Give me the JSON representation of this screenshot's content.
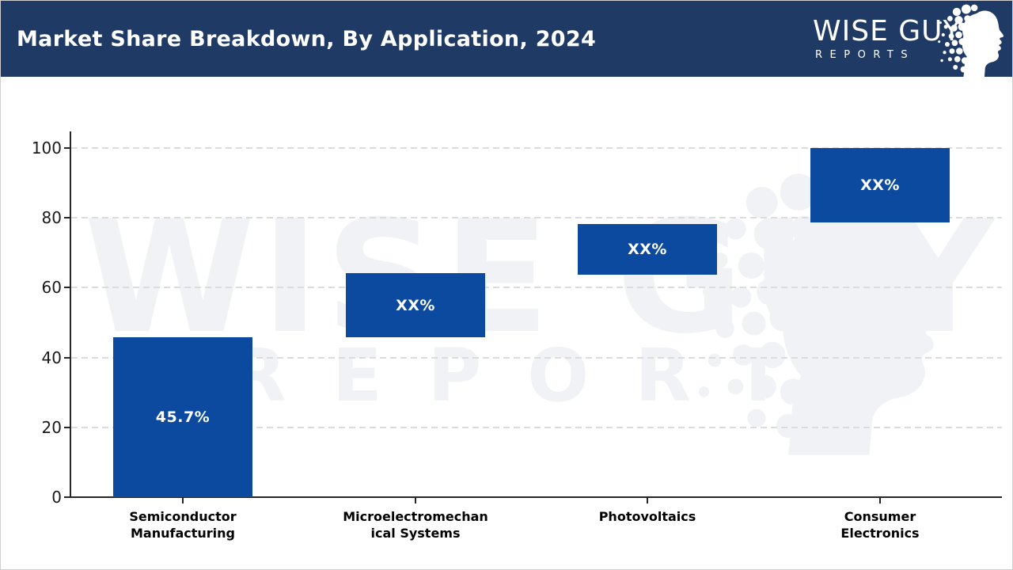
{
  "header": {
    "title": "Market Share Breakdown, By Application, 2024",
    "logo": {
      "line1": "WISE GUY",
      "line2": "REPORTS"
    }
  },
  "watermark": {
    "line1": "WISE GUY",
    "line2": "REPORTS"
  },
  "colors": {
    "header_bg": "#203a66",
    "title_text": "#ffffff",
    "bar": "#0b4a9f",
    "bar_label": "#ffffff",
    "gridline": "#dcdcdc",
    "axis": "#262626",
    "watermark": "#f1f2f5",
    "category_label": "#000000",
    "frame_border": "#cfcfcf"
  },
  "chart_data": {
    "type": "bar",
    "variant": "waterfall",
    "title": "Market Share Breakdown, By Application, 2024",
    "xlabel": "",
    "ylabel": "",
    "ylim": [
      0,
      105
    ],
    "yticks": [
      0,
      20,
      40,
      60,
      80,
      100
    ],
    "grid": "dashed-horizontal",
    "legend": "none",
    "categories": [
      "Semiconductor Manufacturing",
      "Microelectromechanical Systems",
      "Photovoltaics",
      "Consumer Electronics"
    ],
    "category_label_lines": [
      [
        "Semiconductor",
        "Manufacturing"
      ],
      [
        "Microelectromechan",
        "ical Systems"
      ],
      [
        "Photovoltaics"
      ],
      [
        "Consumer",
        "Electronics"
      ]
    ],
    "bars": [
      {
        "category": "Semiconductor Manufacturing",
        "start": 0,
        "end": 45.7,
        "label": "45.7%"
      },
      {
        "category": "Microelectromechanical Systems",
        "start": 45.7,
        "end": 64.1,
        "label": "XX%"
      },
      {
        "category": "Photovoltaics",
        "start": 63.7,
        "end": 78.2,
        "label": "XX%"
      },
      {
        "category": "Consumer Electronics",
        "start": 78.6,
        "end": 99.9,
        "label": "XX%"
      }
    ]
  }
}
